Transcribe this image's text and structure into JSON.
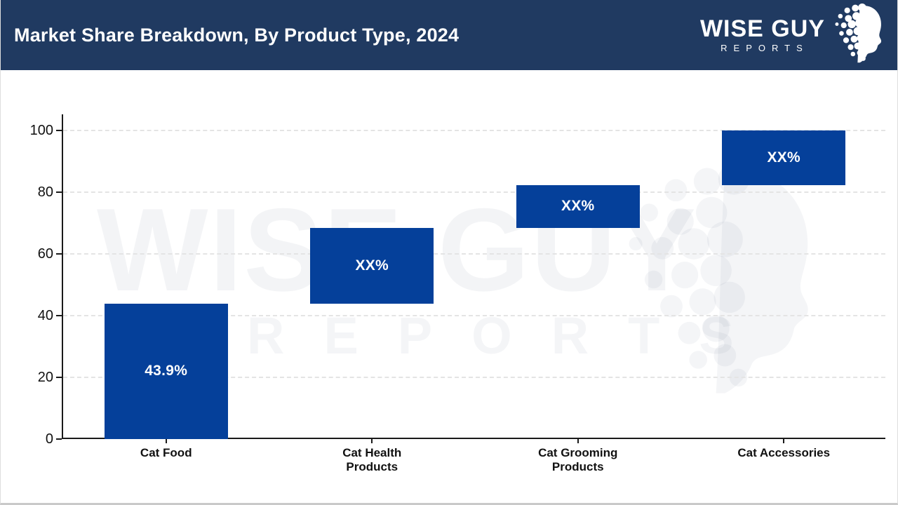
{
  "header": {
    "title": "Market Share Breakdown, By Product Type, 2024",
    "logo": {
      "primary": "WISE GUY",
      "secondary": "REPORTS"
    }
  },
  "watermark": {
    "primary": "WISE GUY",
    "secondary": "REPORTS"
  },
  "chart_data": {
    "type": "bar",
    "subtype": "waterfall",
    "title": "Market Share Breakdown, By Product Type, 2024",
    "categories": [
      {
        "label_lines": [
          "Cat Food"
        ]
      },
      {
        "label_lines": [
          "Cat Health",
          "Products"
        ]
      },
      {
        "label_lines": [
          "Cat Grooming",
          "Products"
        ]
      },
      {
        "label_lines": [
          "Cat Accessories"
        ]
      }
    ],
    "segments": [
      {
        "name": "Cat Food",
        "start": 0,
        "end": 43.9,
        "label": "43.9%"
      },
      {
        "name": "Cat Health Products",
        "start": 43.9,
        "end": 68.4,
        "label": "XX%"
      },
      {
        "name": "Cat Grooming Products",
        "start": 68.4,
        "end": 82.3,
        "label": "XX%"
      },
      {
        "name": "Cat Accessories",
        "start": 82.3,
        "end": 100,
        "label": "XX%"
      }
    ],
    "ylim": [
      0,
      100
    ],
    "yticks": [
      0,
      20,
      40,
      60,
      80,
      100
    ],
    "grid": "horizontal-dashed",
    "legend": "none",
    "bar_color": "#05409a",
    "bar_label_color": "#ffffff"
  },
  "colors": {
    "header_bg": "#203a61",
    "bar": "#05409a",
    "axis": "#1a1a1a",
    "gridline": "#e4e4e4",
    "border": "#c9c9c9"
  }
}
